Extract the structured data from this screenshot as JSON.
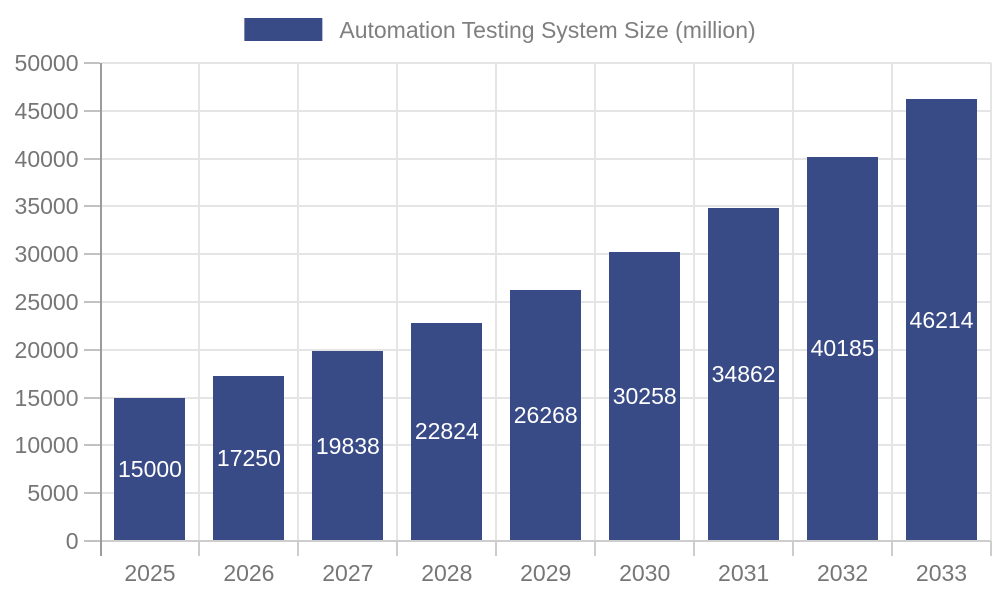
{
  "legend": {
    "label": "Automation Testing System Size (million)"
  },
  "chart_data": {
    "type": "bar",
    "title": "Automation Testing System Size (million)",
    "categories": [
      "2025",
      "2026",
      "2027",
      "2028",
      "2029",
      "2030",
      "2031",
      "2032",
      "2033"
    ],
    "values": [
      15000,
      17250,
      19838,
      22824,
      26268,
      30258,
      34862,
      40185,
      46214
    ],
    "xlabel": "",
    "ylabel": "",
    "ylim": [
      0,
      50000
    ],
    "ytick_step": 5000,
    "yticks": [
      0,
      5000,
      10000,
      15000,
      20000,
      25000,
      30000,
      35000,
      40000,
      45000,
      50000
    ],
    "grid": true,
    "legend_position": "top-center",
    "value_labels": "inside-center"
  },
  "colors": {
    "bar": "#394B87",
    "bar_label": "#ffffff",
    "gridline": "#e5e5e5",
    "y_axis_line": "#9c9c9c",
    "x_axis_line": "#cdcdcd",
    "tick_mark": "#c2c2c2",
    "tick_label_text": "#767676",
    "legend_text": "#7f7f7f"
  }
}
